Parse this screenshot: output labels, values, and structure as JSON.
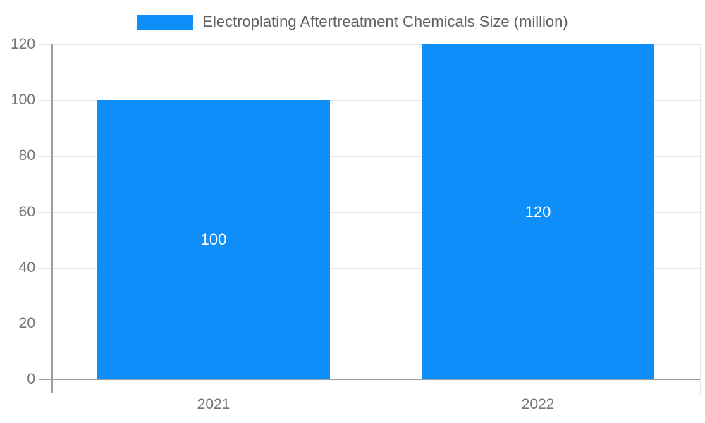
{
  "legend": {
    "label": "Electroplating Aftertreatment Chemicals Size (million)"
  },
  "colors": {
    "series": "#0d8ef8",
    "axis": "#9e9e9e",
    "grid": "#e6e6e6",
    "tick_label": "#757575",
    "legend_text": "#616161",
    "bar_label": "#ffffff",
    "background": "#ffffff"
  },
  "chart_data": {
    "type": "bar",
    "title": "",
    "xlabel": "",
    "ylabel": "",
    "categories": [
      "2021",
      "2022"
    ],
    "series": [
      {
        "name": "Electroplating Aftertreatment Chemicals Size (million)",
        "values": [
          100,
          120
        ]
      }
    ],
    "bar_labels": [
      "100",
      "120"
    ],
    "ylim": [
      0,
      120
    ],
    "yticks": [
      0,
      20,
      40,
      60,
      80,
      100,
      120
    ],
    "grid": true,
    "legend_position": "top"
  }
}
